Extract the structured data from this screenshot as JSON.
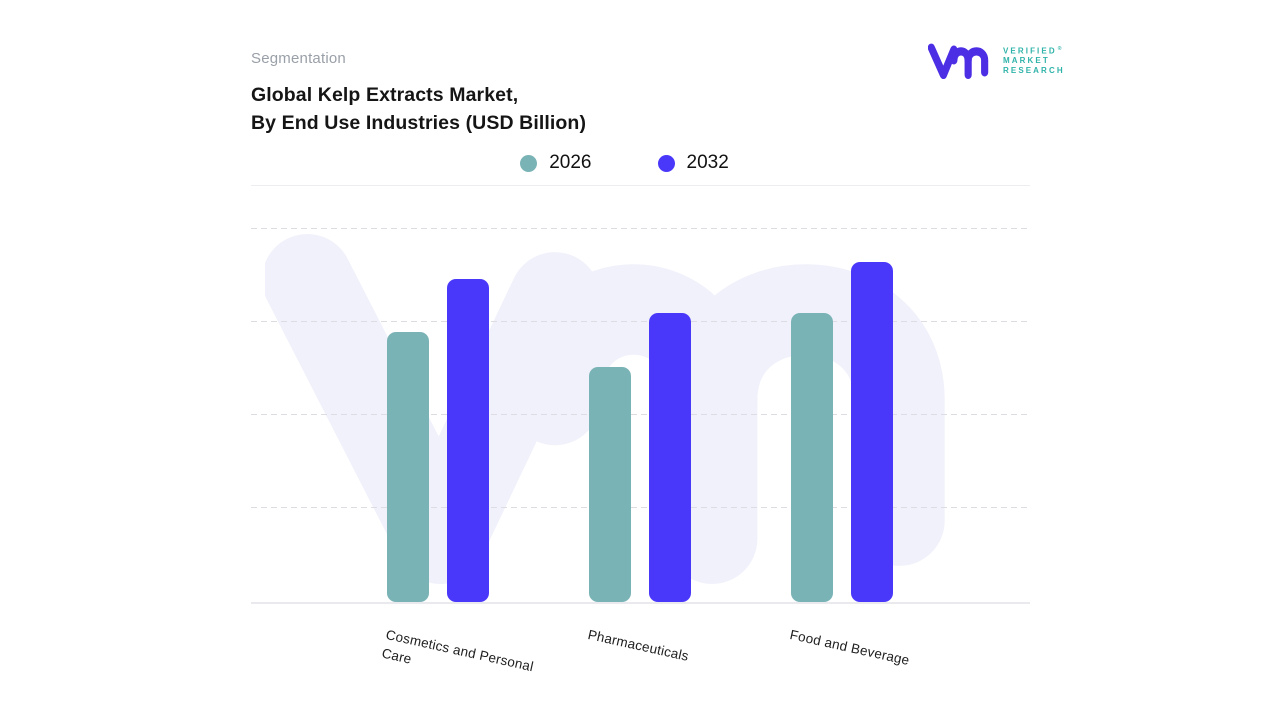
{
  "header": {
    "eyebrow": "Segmentation",
    "title_line1": "Global Kelp Extracts Market,",
    "title_line2": "By End Use Industries (USD Billion)"
  },
  "logo": {
    "word1": "VERIFIED",
    "word2": "MARKET",
    "word3": "RESEARCH",
    "registered": "®"
  },
  "colors": {
    "series_2026": "#7ab3b6",
    "series_2032": "#4a38fa",
    "logo_mark": "#4c2fe4",
    "logo_text": "#2fb3a9",
    "watermark": "#f0f1fb",
    "eyebrow_text": "#9aa0a8",
    "gridline": "#dcdce2"
  },
  "chart_data": {
    "type": "bar",
    "title": "Global Kelp Extracts Market, By End Use Industries (USD Billion)",
    "categories": [
      "Cosmetics and Personal Care",
      "Pharmaceuticals",
      "Food and Beverage"
    ],
    "series": [
      {
        "name": "2026",
        "color": "#7ab3b6",
        "values": [
          64.6,
          56.2,
          69.1
        ]
      },
      {
        "name": "2032",
        "color": "#4a38fa",
        "values": [
          77.3,
          69.1,
          81.3
        ]
      }
    ],
    "xlabel": "",
    "ylabel": "",
    "ylim": [
      0,
      100
    ],
    "value_axis_labels_visible": false,
    "values_note": "no numeric axis shown; values estimated as percent of plot height",
    "grid": "horizontal-dashed",
    "legend_position": "top-center",
    "category_labels_rotation_deg": 12.5
  }
}
